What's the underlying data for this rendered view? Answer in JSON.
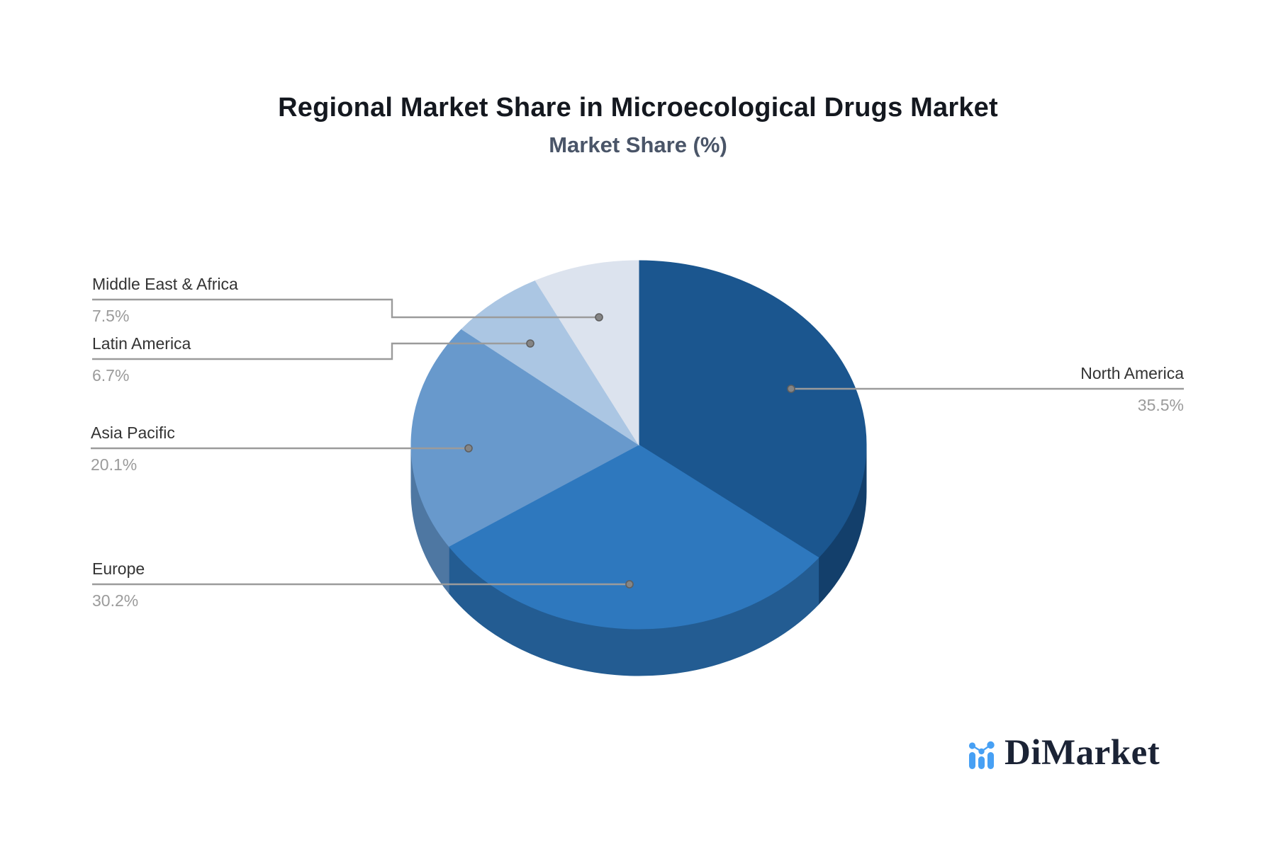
{
  "header": {
    "title": "Regional Market Share in Microecological Drugs Market",
    "subtitle": "Market Share (%)"
  },
  "branding": {
    "name": "DiMarket",
    "icon": "bar-line-chart-icon",
    "icon_color": "#47a0f4",
    "text_color": "#1b2335"
  },
  "chart_data": {
    "type": "pie",
    "style": "3d",
    "title": "Regional Market Share in Microecological Drugs Market",
    "subtitle": "Market Share (%)",
    "unit": "%",
    "start_angle_deg": 0,
    "direction": "clockwise",
    "legend_position": "callout-labels",
    "categories": [
      "North America",
      "Europe",
      "Asia Pacific",
      "Latin America",
      "Middle East & Africa"
    ],
    "values": [
      35.5,
      30.2,
      20.1,
      6.7,
      7.5
    ],
    "value_labels": [
      "35.5%",
      "30.2%",
      "20.1%",
      "6.7%",
      "7.5%"
    ],
    "colors": [
      "#1b568f",
      "#2e78be",
      "#6899cc",
      "#abc6e3",
      "#dce3ee"
    ],
    "side_colors": [
      "#133f6b",
      "#235c92",
      "#4e77a2",
      "#84a6c8",
      "#b8c4d6"
    ],
    "connector_color": "#9b9b9b",
    "dot_color": "#858585",
    "dot_ring_color": "#5f5f5f",
    "label_color": "#333333",
    "value_color": "#9b9b9b",
    "background_color": "#ffffff"
  }
}
